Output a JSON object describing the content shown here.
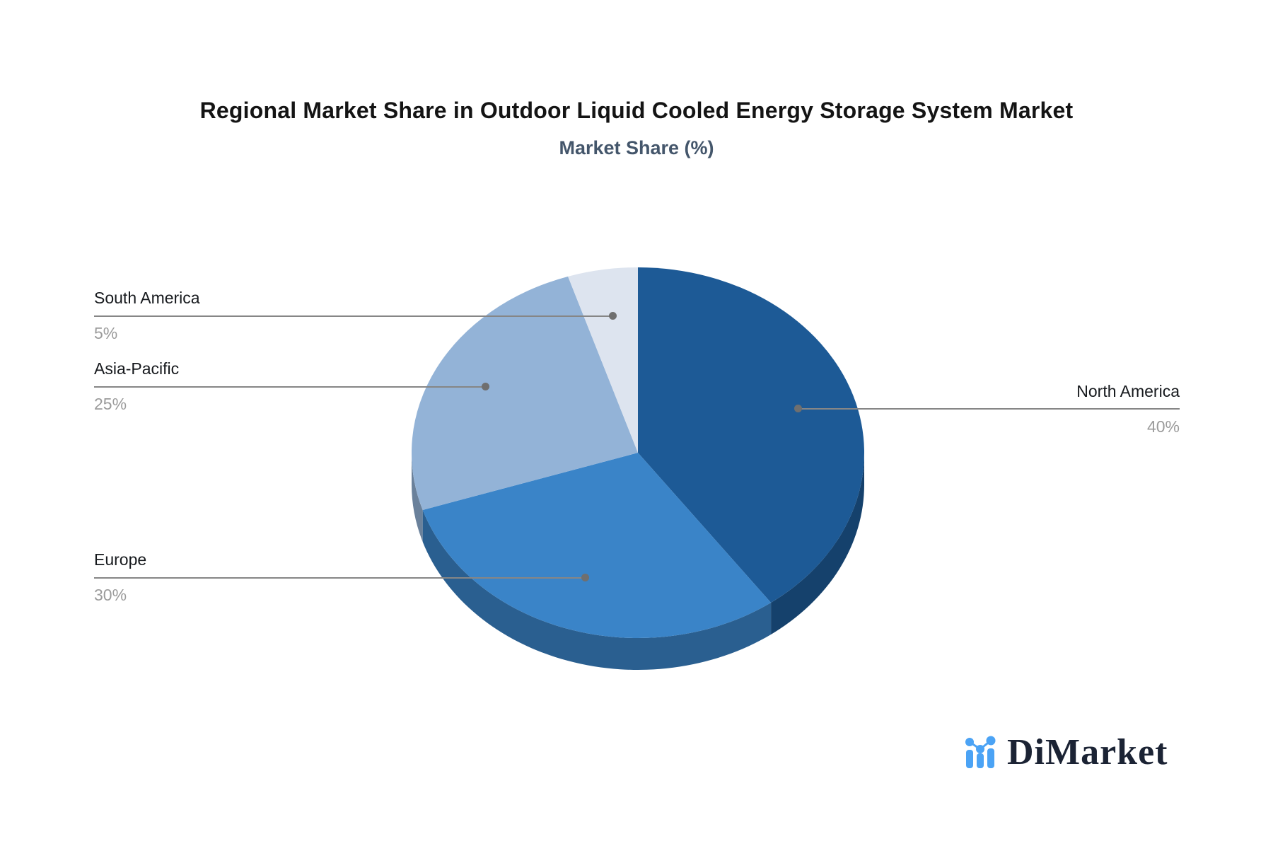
{
  "title": "Regional Market Share in Outdoor Liquid Cooled Energy Storage System Market",
  "subtitle": "Market Share (%)",
  "chart_data": {
    "type": "pie",
    "title": "Regional Market Share in Outdoor Liquid Cooled Energy Storage System Market",
    "subtitle": "Market Share (%)",
    "unit": "%",
    "style": "3d-pie",
    "direction": "clockwise",
    "start_angle_deg": 0,
    "legend_position": "callout-leader-lines",
    "categories": [
      "North America",
      "Europe",
      "Asia-Pacific",
      "South America"
    ],
    "values": [
      40,
      30,
      25,
      5
    ],
    "percent_labels": [
      "40%",
      "30%",
      "25%",
      "5%"
    ],
    "colors": [
      "#1d5a96",
      "#3a84c8",
      "#93b3d7",
      "#dde4ef"
    ]
  },
  "leader": {
    "line_color": "#868686",
    "dot_color": "#6f6f6f"
  },
  "logo": {
    "text": "DiMarket",
    "icon": "bar-chart-with-trend-dots-icon",
    "icon_color": "#4ba3f5",
    "text_color": "#1b2334"
  }
}
